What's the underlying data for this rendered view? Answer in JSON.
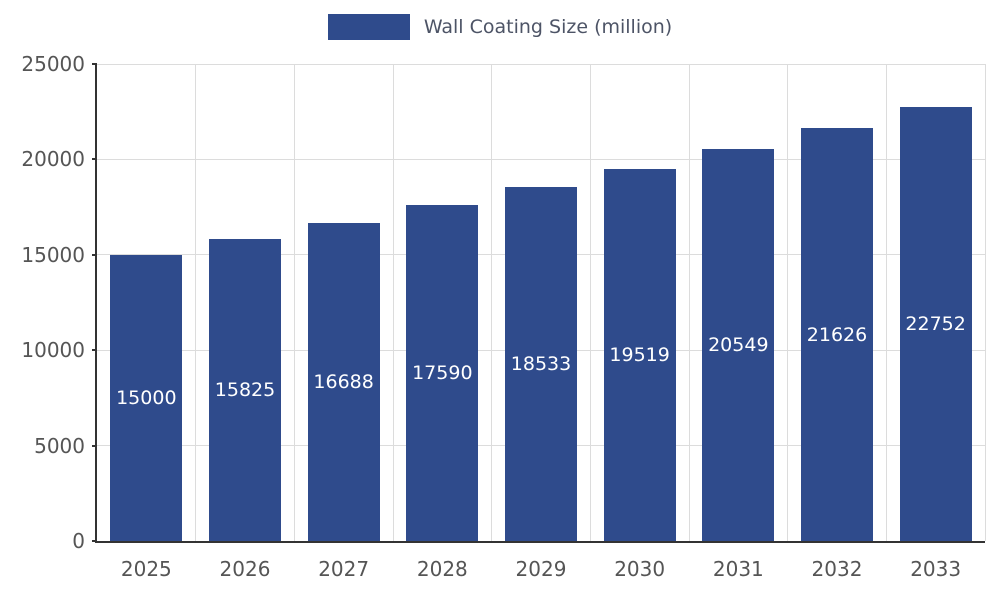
{
  "chart_data": {
    "type": "bar",
    "title": "Wall Coating Size (million)",
    "series_name": "Wall Coating Size (million)",
    "categories": [
      "2025",
      "2026",
      "2027",
      "2028",
      "2029",
      "2030",
      "2031",
      "2032",
      "2033"
    ],
    "values": [
      15000,
      15825,
      16688,
      17590,
      18533,
      19519,
      20549,
      21626,
      22752
    ],
    "xlabel": "",
    "ylabel": "",
    "ylim": [
      0,
      25000
    ],
    "y_ticks": [
      0,
      5000,
      10000,
      15000,
      20000,
      25000
    ],
    "grid": true,
    "legend_position": "top",
    "colors": {
      "bar": "#2f4b8c",
      "value_label": "#ffffff",
      "axis": "#333333",
      "grid": "#dcdcdc",
      "tick_text": "#555555"
    }
  }
}
